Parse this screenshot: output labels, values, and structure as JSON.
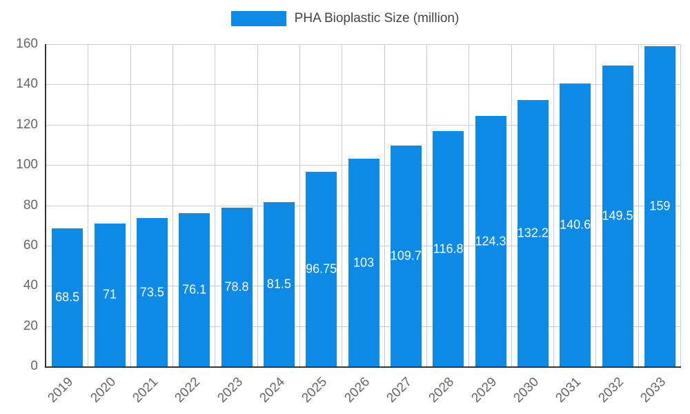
{
  "legend": {
    "label": "PHA Bioplastic Size (million)"
  },
  "chart_data": {
    "type": "bar",
    "title": "PHA Bioplastic Size (million)",
    "xlabel": "",
    "ylabel": "",
    "categories": [
      "2019",
      "2020",
      "2021",
      "2022",
      "2023",
      "2024",
      "2025",
      "2026",
      "2027",
      "2028",
      "2029",
      "2030",
      "2031",
      "2032",
      "2033"
    ],
    "values": [
      68.5,
      71,
      73.5,
      76.1,
      78.8,
      81.5,
      96.75,
      103,
      109.7,
      116.8,
      124.3,
      132.2,
      140.6,
      149.5,
      159
    ],
    "ylim": [
      0,
      160
    ],
    "ytick_step": 20,
    "grid": true,
    "legend_position": "top-center",
    "colors": {
      "bar": "#0d8ae8",
      "grid": "#cccccc",
      "axis_text": "#666666",
      "baseline": "#333333",
      "value_label": "#ffffff",
      "legend_text": "#444444"
    }
  }
}
